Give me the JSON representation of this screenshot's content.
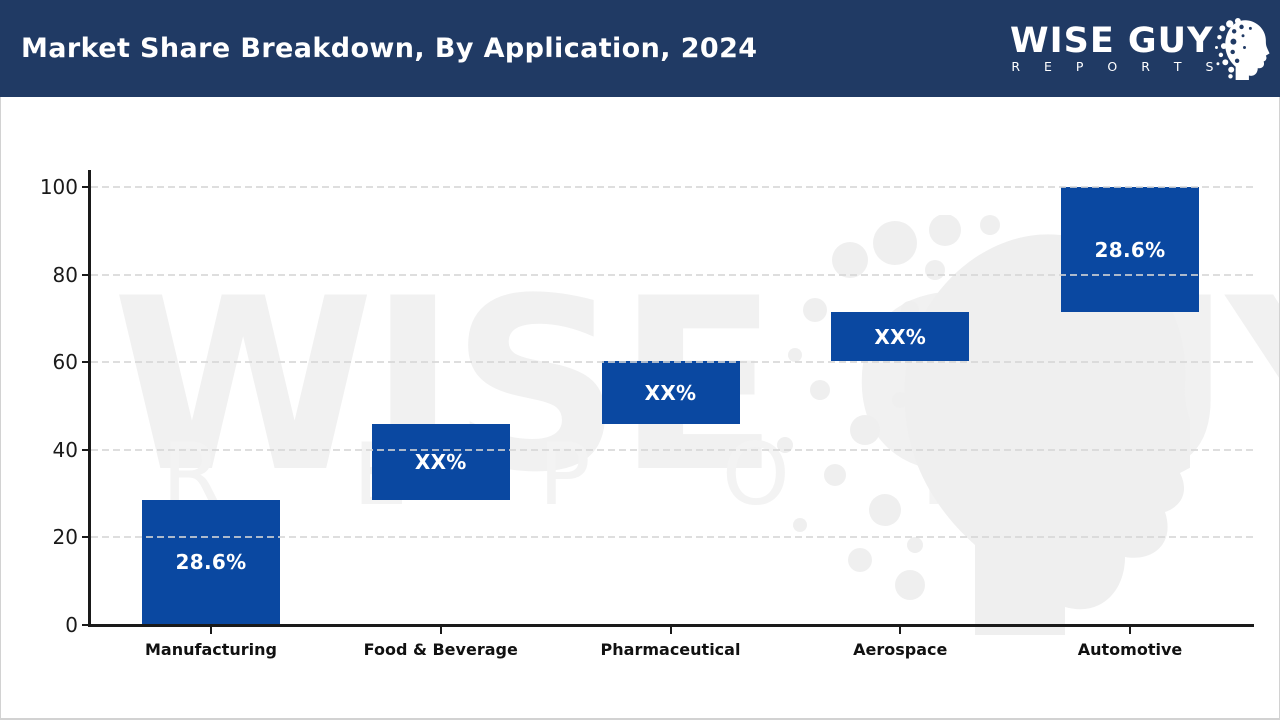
{
  "header": {
    "title": "Market Share Breakdown, By Application, 2024",
    "logo": {
      "line1": "WISE GUY",
      "line2": "R E P O R T S"
    }
  },
  "watermark": {
    "line1": "WISE GUY",
    "line2": "R E P O R T S"
  },
  "colors": {
    "header_bg": "#203a64",
    "bar": "#0a48a1",
    "bar_label": "#ffffff",
    "axis": "#1a1a1a",
    "grid": "#d6d6d6",
    "watermark": "#f1f1f1"
  },
  "chart_data": {
    "type": "bar",
    "subtype": "waterfall",
    "title": "Market Share Breakdown, By Application, 2024",
    "categories": [
      "Manufacturing",
      "Food & Beverage",
      "Pharmaceutical",
      "Aerospace",
      "Automotive"
    ],
    "segments": [
      {
        "category": "Manufacturing",
        "start": 0,
        "end": 28.6,
        "label": "28.6%"
      },
      {
        "category": "Food & Beverage",
        "start": 28.6,
        "end": 45.9,
        "label": "XX%"
      },
      {
        "category": "Pharmaceutical",
        "start": 45.9,
        "end": 60.2,
        "label": "XX%"
      },
      {
        "category": "Aerospace",
        "start": 60.2,
        "end": 71.4,
        "label": "XX%"
      },
      {
        "category": "Automotive",
        "start": 71.4,
        "end": 100,
        "label": "28.6%"
      }
    ],
    "ylim": [
      0,
      100
    ],
    "yticks": [
      0,
      20,
      40,
      60,
      80,
      100
    ],
    "ytick_labels": [
      "0",
      "20",
      "40",
      "60",
      "80",
      "100"
    ],
    "xlabel": "",
    "ylabel": "",
    "grid": "dashed-horizontal",
    "legend": "none"
  }
}
